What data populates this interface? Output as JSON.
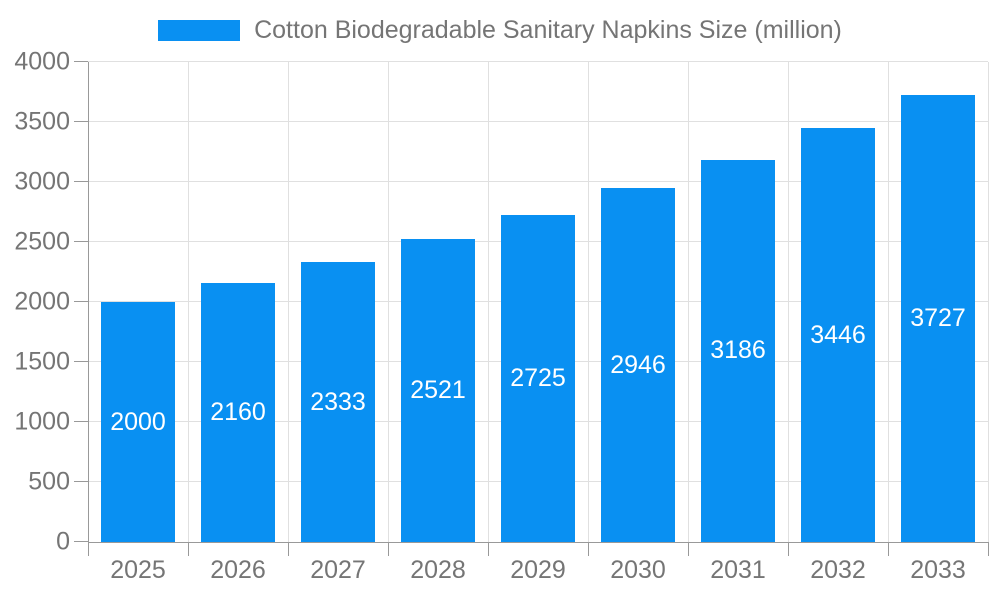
{
  "legend": {
    "label": "Cotton Biodegradable Sanitary Napkins Size (million)"
  },
  "chart_data": {
    "type": "bar",
    "title": "Cotton Biodegradable Sanitary Napkins Size (million)",
    "series_name": "Cotton Biodegradable Sanitary Napkins Size (million)",
    "categories": [
      "2025",
      "2026",
      "2027",
      "2028",
      "2029",
      "2030",
      "2031",
      "2032",
      "2033"
    ],
    "values": [
      2000,
      2160,
      2333,
      2521,
      2725,
      2946,
      3186,
      3446,
      3727
    ],
    "xlabel": "",
    "ylabel": "",
    "ylim": [
      0,
      4000
    ],
    "yticks": [
      0,
      500,
      1000,
      1500,
      2000,
      2500,
      3000,
      3500,
      4000
    ],
    "grid": true,
    "legend_position": "top-center",
    "bar_value_labels": "inside-center"
  },
  "colors": {
    "bar": "#0990f2",
    "grid": "#e0e0e0",
    "axis": "#999999",
    "text": "#757575",
    "bar_label": "#ffffff",
    "background": "#ffffff"
  }
}
